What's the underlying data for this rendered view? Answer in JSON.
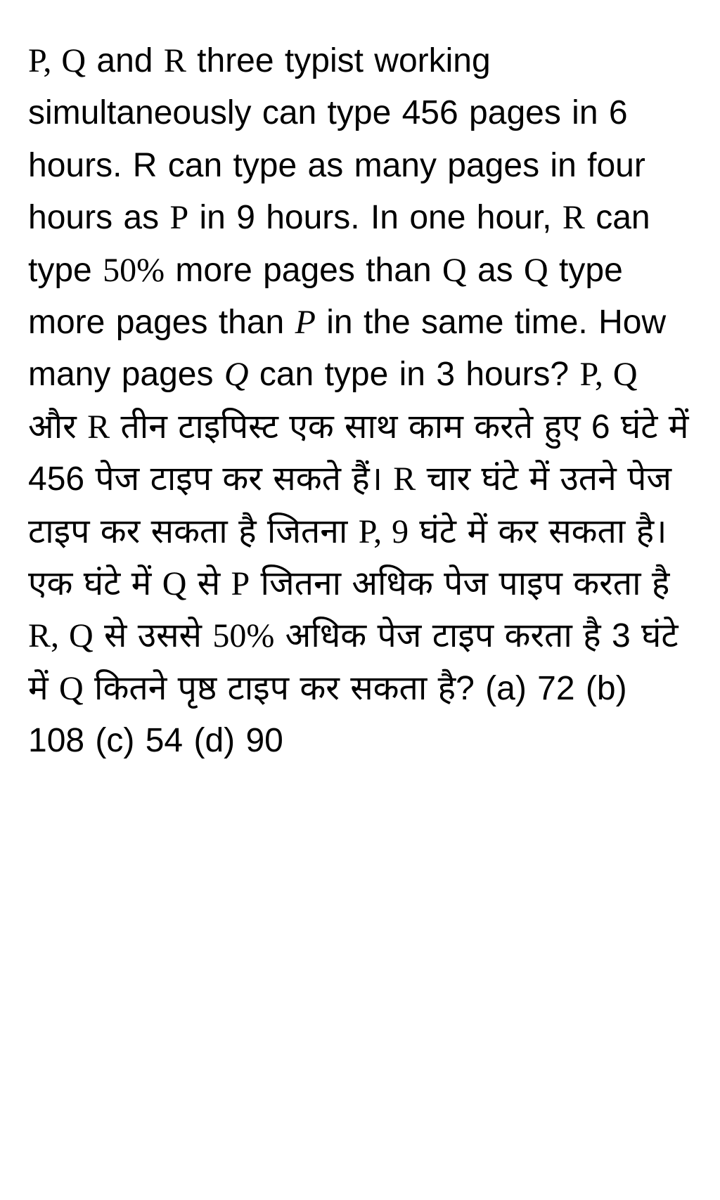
{
  "question": {
    "line1_part1": "P, Q",
    "line1_part2": " and ",
    "line1_part3": "R",
    "line1_part4": " three typist working",
    "line2": "simultaneously can type 456",
    "line3": "pages in 6 hours. R can type as",
    "line4_part1": "many pages in four hours as ",
    "line4_part2": "P",
    "line4_part3": " in",
    "line5_part1": "9 hours. In one hour, ",
    "line5_part2": "R",
    "line5_part3": " can type",
    "line6_part1": "50%",
    "line6_part2": " more pages than ",
    "line6_part3": "Q",
    "line6_part4": " as ",
    "line6_part5": "Q",
    "line7_part1": "type more pages than ",
    "line7_part2": "P",
    "line7_part3": " in the",
    "line8_part1": "same time. How many pages ",
    "line8_part2": "Q",
    "line9_part1": "can type in 3 hours? ",
    "line9_part2": "P, Q",
    "line9_part3": " और ",
    "line9_part4": "R",
    "line10": "तीन टाइपिस्ट एक साथ काम करते हुए 6 घंटे",
    "line11_part1": "में 456 पेज टाइप कर सकते हैं। ",
    "line11_part2": "R",
    "line11_part3": " चार घंटे",
    "line12": "में उतने पेज टाइप कर सकता है जितना",
    "line13_part1": "P, 9",
    "line13_part2": " घंटे में कर सकता है। एक घंटे में ",
    "line13_part3": "Q",
    "line13_part4": " से",
    "line14_part1": "P",
    "line14_part2": " जितना अधिक पेज पाइप करता है",
    "line15_part1": "R, Q",
    "line15_part2": " से उससे ",
    "line15_part3": "50%",
    "line15_part4": " अधिक पेज टाइप",
    "line16_part1": "करता है 3 घंटे में ",
    "line16_part2": "Q",
    "line16_part3": " कितने पृष्ठ टाइप कर",
    "line17": "सकता है? (a) 72 (b) 108 (c) 54 (d)",
    "line18": "90"
  },
  "styling": {
    "font_size": 48,
    "line_height": 1.55,
    "text_color": "#000000",
    "background_color": "#ffffff"
  }
}
